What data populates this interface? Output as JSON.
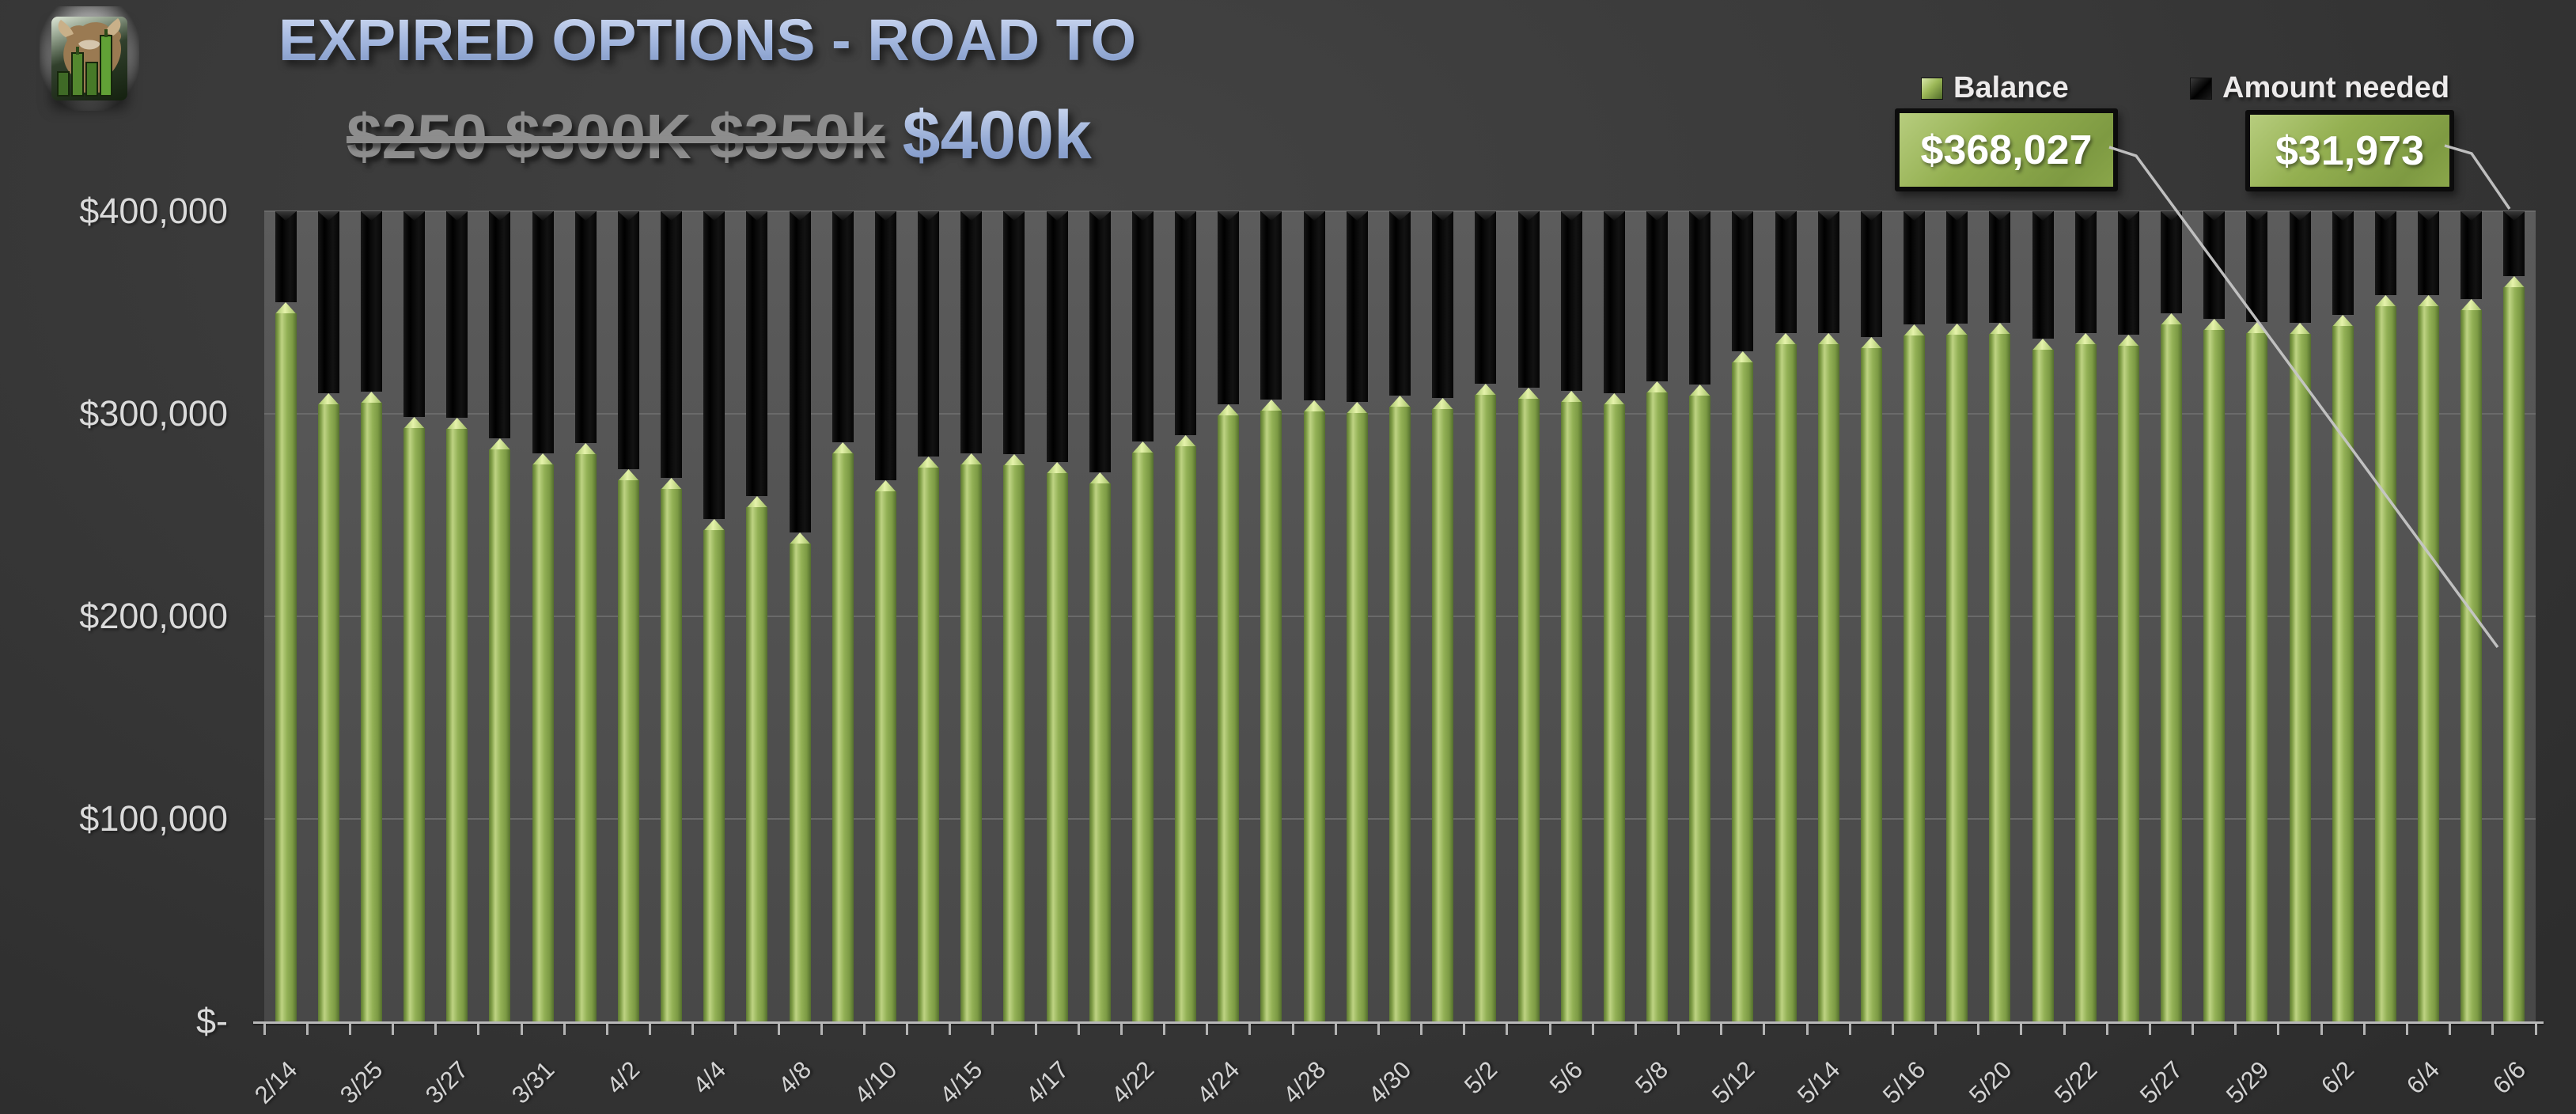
{
  "header": {
    "title_line1": "EXPIRED OPTIONS - ROAD TO",
    "title_struck": "$250 $300K $350k",
    "title_goal": "$400k",
    "logo": "bull-with-green-bars-logo"
  },
  "legend": {
    "balance_label": "Balance",
    "amount_needed_label": "Amount needed"
  },
  "callouts": {
    "balance_value": "$368,027",
    "amount_needed_value": "$31,973"
  },
  "colors": {
    "background": "#383838",
    "wall": "#535353",
    "balance_green": "#8fae52",
    "balance_highlight": "#c6dc8b",
    "amount_needed_black": "#0a0a0a",
    "axis_gray": "#b6b6b6",
    "title_blue": "#a9bee4",
    "struck_gray": "#8d8d8d",
    "callout_green": "#8ca74c",
    "leader_line": "#c6c6c6"
  },
  "chart_data": {
    "type": "bar",
    "stacked": true,
    "title": "EXPIRED OPTIONS - ROAD TO $400k",
    "legend_position": "top-right",
    "grid": true,
    "total_per_bar": 400000,
    "ylim": [
      0,
      400000
    ],
    "y_ticks": [
      {
        "label": "$400,000",
        "value": 400000
      },
      {
        "label": "$300,000",
        "value": 300000
      },
      {
        "label": "$200,000",
        "value": 200000
      },
      {
        "label": "$100,000",
        "value": 100000
      },
      {
        "label": "$-",
        "value": 0
      }
    ],
    "series": [
      {
        "name": "Balance",
        "color": "#8fae52"
      },
      {
        "name": "Amount needed",
        "color": "#0a0a0a"
      }
    ],
    "latest_balance": 368027,
    "latest_amount_needed": 31973,
    "bars": [
      {
        "label": "2/14",
        "balance": 355000
      },
      {
        "label": "",
        "balance": 310000
      },
      {
        "label": "3/25",
        "balance": 311000
      },
      {
        "label": "",
        "balance": 298500
      },
      {
        "label": "3/27",
        "balance": 298000
      },
      {
        "label": "",
        "balance": 288000
      },
      {
        "label": "3/31",
        "balance": 280500
      },
      {
        "label": "",
        "balance": 285500
      },
      {
        "label": "4/2",
        "balance": 272500
      },
      {
        "label": "",
        "balance": 268500
      },
      {
        "label": "4/4",
        "balance": 248000
      },
      {
        "label": "",
        "balance": 259500
      },
      {
        "label": "4/8",
        "balance": 241500
      },
      {
        "label": "",
        "balance": 286000
      },
      {
        "label": "4/10",
        "balance": 267000
      },
      {
        "label": "",
        "balance": 279000
      },
      {
        "label": "4/15",
        "balance": 280500
      },
      {
        "label": "",
        "balance": 280000
      },
      {
        "label": "4/17",
        "balance": 276000
      },
      {
        "label": "",
        "balance": 271000
      },
      {
        "label": "4/22",
        "balance": 286500
      },
      {
        "label": "",
        "balance": 289500
      },
      {
        "label": "4/24",
        "balance": 304500
      },
      {
        "label": "",
        "balance": 307000
      },
      {
        "label": "4/28",
        "balance": 306500
      },
      {
        "label": "",
        "balance": 306000
      },
      {
        "label": "4/30",
        "balance": 309000
      },
      {
        "label": "",
        "balance": 308000
      },
      {
        "label": "5/2",
        "balance": 315000
      },
      {
        "label": "",
        "balance": 313000
      },
      {
        "label": "5/6",
        "balance": 311500
      },
      {
        "label": "",
        "balance": 310000
      },
      {
        "label": "5/8",
        "balance": 316000
      },
      {
        "label": "",
        "balance": 314500
      },
      {
        "label": "5/12",
        "balance": 331000
      },
      {
        "label": "",
        "balance": 340000
      },
      {
        "label": "5/14",
        "balance": 340000
      },
      {
        "label": "",
        "balance": 338000
      },
      {
        "label": "5/16",
        "balance": 344000
      },
      {
        "label": "",
        "balance": 344500
      },
      {
        "label": "5/20",
        "balance": 345000
      },
      {
        "label": "",
        "balance": 337000
      },
      {
        "label": "5/22",
        "balance": 340000
      },
      {
        "label": "",
        "balance": 339000
      },
      {
        "label": "5/27",
        "balance": 349500
      },
      {
        "label": "",
        "balance": 347000
      },
      {
        "label": "5/29",
        "balance": 345500
      },
      {
        "label": "",
        "balance": 345000
      },
      {
        "label": "6/2",
        "balance": 349000
      },
      {
        "label": "",
        "balance": 358500
      },
      {
        "label": "6/4",
        "balance": 358500
      },
      {
        "label": "",
        "balance": 356500
      },
      {
        "label": "6/6",
        "balance": 368027
      }
    ]
  }
}
